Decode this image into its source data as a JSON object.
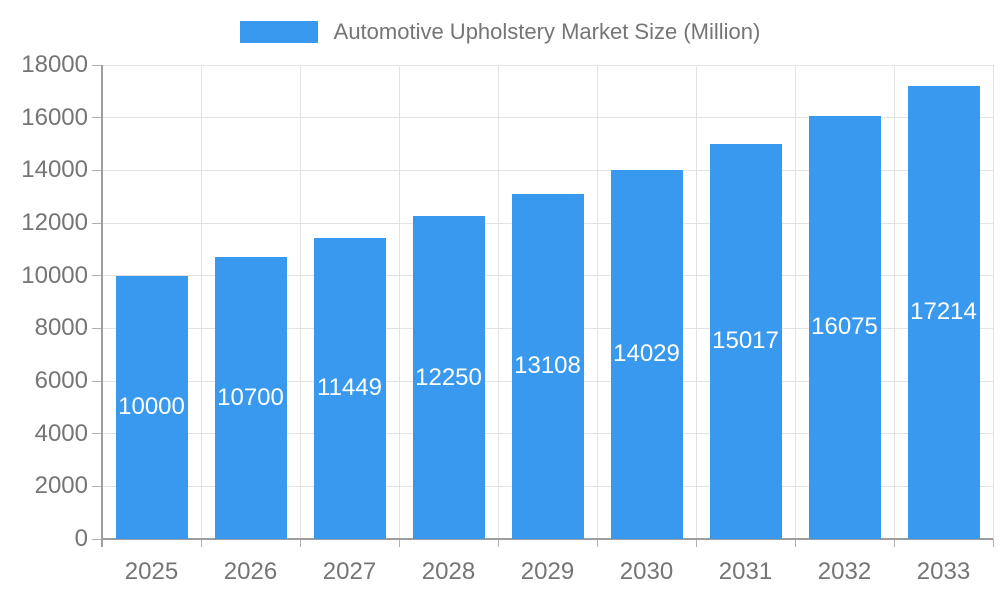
{
  "legend": {
    "label": "Automotive Upholstery Market Size (Million)"
  },
  "colors": {
    "bar": "#3999EE",
    "axis_line": "#9e9e9e",
    "tick": "#b0b0b0",
    "gridline": "#e3e3e3",
    "axis_label_text": "#757575",
    "legend_text": "#757575",
    "bar_label_text": "#ffffff",
    "background": "#ffffff"
  },
  "chart_data": {
    "type": "bar",
    "title": "Automotive Upholstery Market Size (Million)",
    "categories": [
      "2025",
      "2026",
      "2027",
      "2028",
      "2029",
      "2030",
      "2031",
      "2032",
      "2033"
    ],
    "series": [
      {
        "name": "Automotive Upholstery Market Size (Million)",
        "values": [
          10000,
          10700,
          11449,
          12250,
          13108,
          14029,
          15017,
          16075,
          17214
        ]
      }
    ],
    "xlabel": "",
    "ylabel": "",
    "ylim": [
      0,
      18000
    ],
    "ytick_step": 2000,
    "ytick_labels": [
      "0",
      "2000",
      "4000",
      "6000",
      "8000",
      "10000",
      "12000",
      "14000",
      "16000",
      "18000"
    ],
    "grid": true,
    "legend_position": "top-center",
    "bar_labels_visible": true,
    "bar_label_position": "center-of-bar"
  }
}
